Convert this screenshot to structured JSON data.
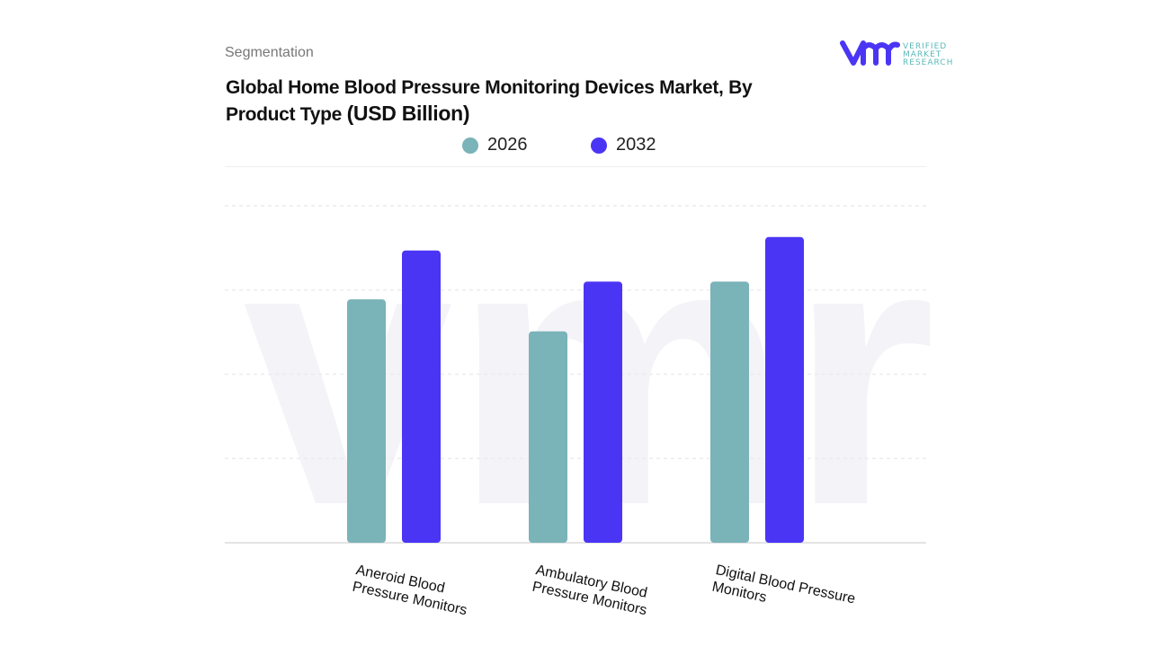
{
  "header": {
    "section": "Segmentation",
    "title": "Global Home Blood Pressure Monitoring Devices Market, By Product Type",
    "unit": "(USD Billion)"
  },
  "logo": {
    "text": [
      "VERIFIED",
      "MARKET",
      "RESEARCH"
    ],
    "mark": "vmr"
  },
  "chart_data": {
    "type": "bar",
    "title": "Global Home Blood Pressure Monitoring Devices Market, By Product Type (USD Billion)",
    "categories": [
      [
        "Aneroid Blood",
        "Pressure Monitors"
      ],
      [
        "Ambulatory Blood",
        "Pressure Monitors"
      ],
      [
        "Digital Blood Pressure",
        "Monitors"
      ]
    ],
    "series": [
      {
        "name": "2026",
        "color": "#7ab3b8",
        "values": [
          2.89,
          2.51,
          3.1
        ]
      },
      {
        "name": "2032",
        "color": "#4b35f5",
        "values": [
          3.47,
          3.1,
          3.63
        ]
      }
    ],
    "ylim": [
      0,
      4
    ],
    "grid": true,
    "legend": "top",
    "yaxis_labels": false
  }
}
